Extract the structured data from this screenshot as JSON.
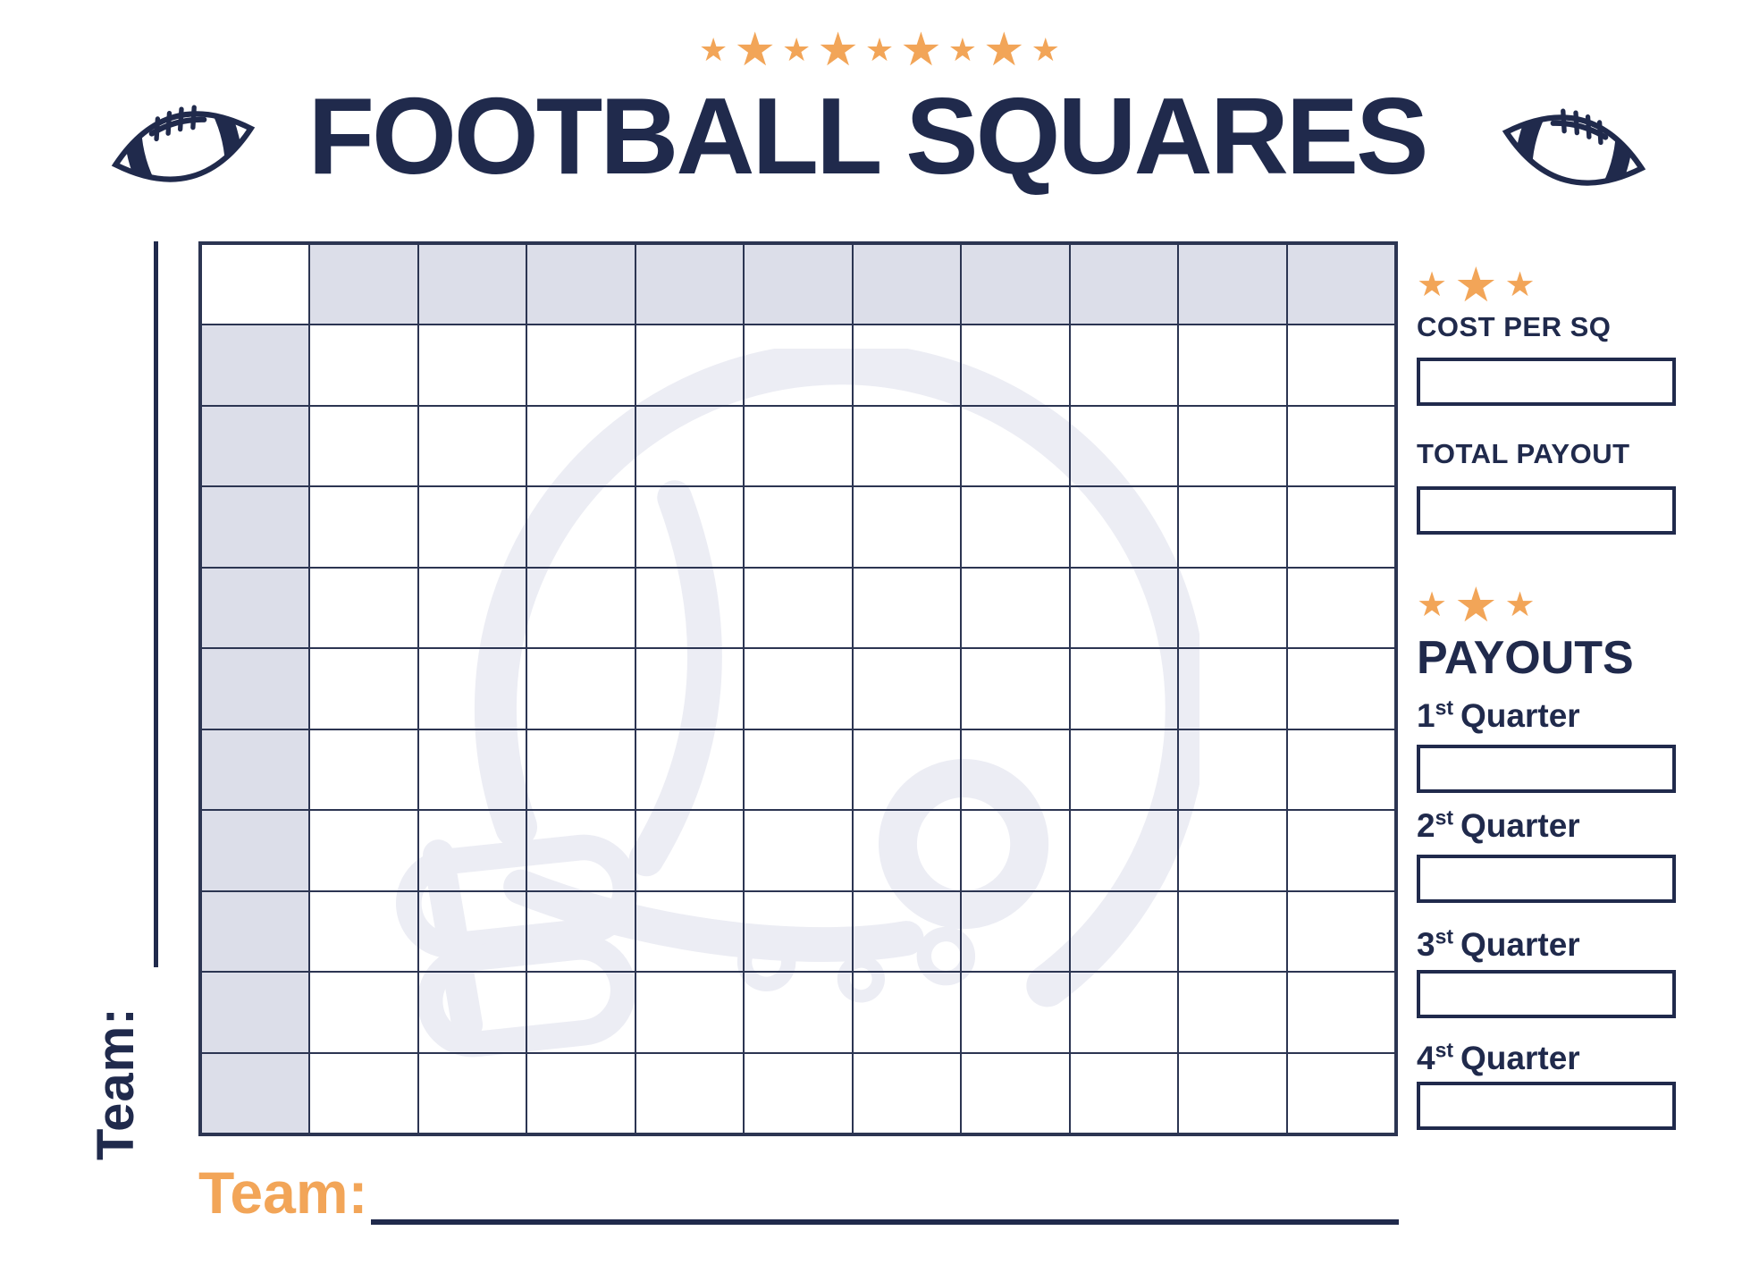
{
  "header": {
    "title": "FOOTBALL SQUARES",
    "star_glyph": "★",
    "top_stars": [
      "s",
      "l",
      "s",
      "l",
      "s",
      "l",
      "s",
      "l",
      "s"
    ]
  },
  "grid": {
    "rows": 11,
    "cols": 11,
    "play_rows": 10,
    "play_cols": 10
  },
  "team": {
    "left_label": "Team:",
    "left_value": "",
    "bottom_label": "Team:",
    "bottom_value": ""
  },
  "sidebar": {
    "cost_stars": [
      "s",
      "l",
      "s"
    ],
    "cost_label": "COST PER SQ",
    "cost_value": "",
    "total_label": "TOTAL PAYOUT",
    "total_value": "",
    "payout_stars": [
      "s",
      "l",
      "s"
    ],
    "payouts_title": "PAYOUTS",
    "quarters": [
      {
        "number": "1",
        "suffix": "st",
        "word": "Quarter",
        "value": ""
      },
      {
        "number": "2",
        "suffix": "st",
        "word": "Quarter",
        "value": ""
      },
      {
        "number": "3",
        "suffix": "st",
        "word": "Quarter",
        "value": ""
      },
      {
        "number": "4",
        "suffix": "st",
        "word": "Quarter",
        "value": ""
      }
    ]
  },
  "colors": {
    "navy": "#202a4c",
    "grid_line": "#2c3552",
    "orange": "#f2a558",
    "cell_shade": "#dadce8",
    "watermark": "#ecedf4",
    "football_shadow": "#b8bbce"
  }
}
